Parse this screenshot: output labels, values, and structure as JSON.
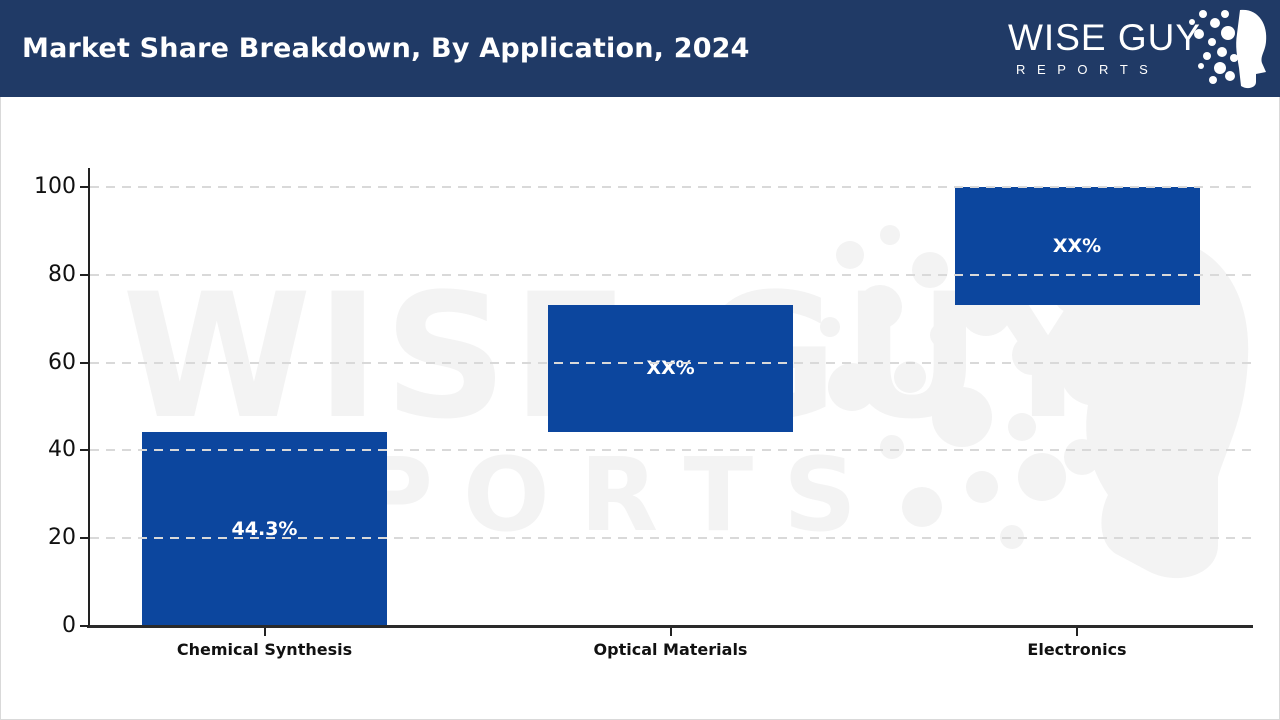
{
  "header": {
    "title": "Market Share Breakdown, By Application, 2024",
    "bg_color": "#203a66",
    "logo": {
      "line1": "WISE GUY",
      "line2": "R E P O R T S",
      "face_icon": "dotted-face-profile"
    }
  },
  "watermark": {
    "line1": "WISE GUY",
    "line2": "REPORTS",
    "face_icon": "dotted-face-profile"
  },
  "chart_data": {
    "type": "bar",
    "subtype": "floating-waterfall",
    "title": "Market Share Breakdown, By Application, 2024",
    "categories": [
      "Chemical Synthesis",
      "Optical Materials",
      "Electronics"
    ],
    "segments": [
      {
        "category": "Chemical Synthesis",
        "start": 0,
        "end": 44.3,
        "label": "44.3%"
      },
      {
        "category": "Optical Materials",
        "start": 44.3,
        "end": 73.1,
        "label": "XX%"
      },
      {
        "category": "Electronics",
        "start": 73.1,
        "end": 100,
        "label": "XX%"
      }
    ],
    "yticks": [
      0,
      20,
      40,
      60,
      80,
      100
    ],
    "ylim": [
      0,
      104
    ],
    "xlabel": "",
    "ylabel": "",
    "grid": "horizontal-dashed",
    "legend": "none",
    "bar_color": "#0c469e",
    "bar_label_color": "#ffffff",
    "grid_color": "#d9d9d9",
    "axis_color": "#222222"
  }
}
